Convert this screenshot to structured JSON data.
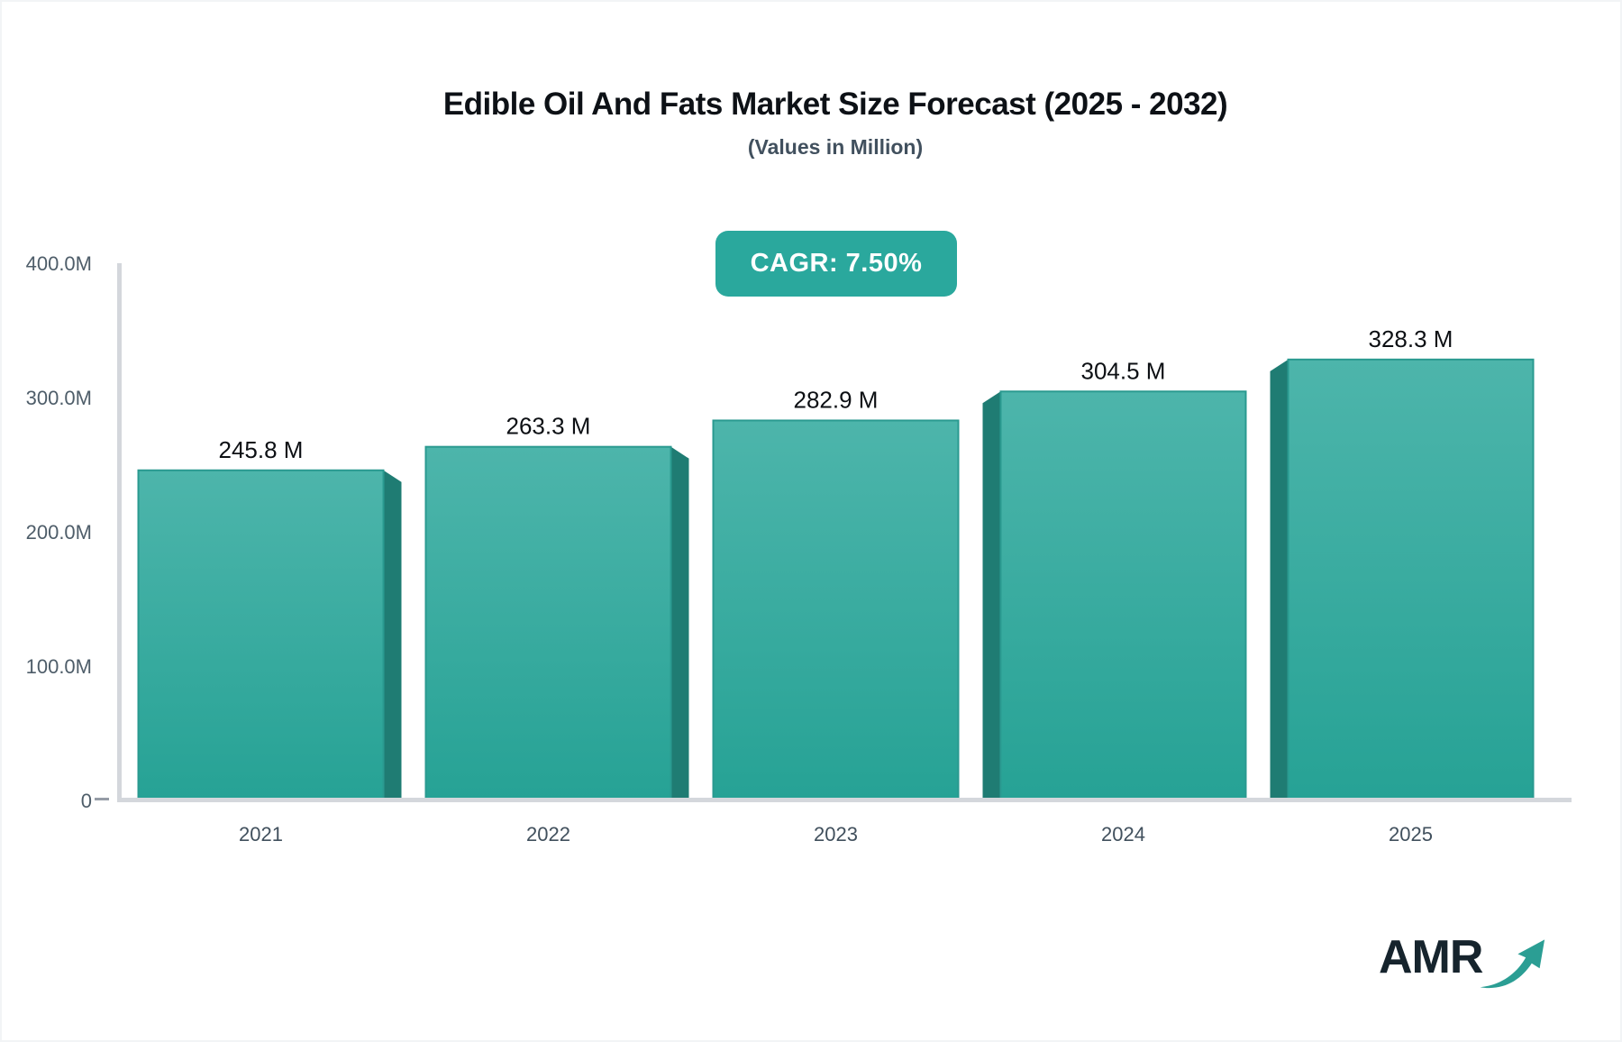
{
  "header": {
    "title": "Edible Oil And Fats Market Size Forecast (2025 - 2032)",
    "subtitle": "(Values in Million)"
  },
  "badge": {
    "label": "CAGR: 7.50%",
    "background": "#2aa89d",
    "text_color": "#ffffff"
  },
  "logo": {
    "text": "AMR",
    "arrow_icon": "trend-up-arrow",
    "arrow_color": "#2b9e94",
    "text_color": "#16242d"
  },
  "chart_data": {
    "type": "bar",
    "title": "Edible Oil And Fats Market Size Forecast (2025 - 2032)",
    "subtitle": "(Values in Million)",
    "categories": [
      "2021",
      "2022",
      "2023",
      "2024",
      "2025"
    ],
    "values": [
      245.8,
      263.3,
      282.9,
      304.5,
      328.3
    ],
    "value_labels": [
      "245.8 M",
      "263.3 M",
      "282.9 M",
      "304.5 M",
      "328.3 M"
    ],
    "unit": "Million",
    "cagr": "7.50%",
    "xlabel": "",
    "ylabel": "",
    "ylim": [
      0,
      400
    ],
    "yticks": [
      {
        "value": 400,
        "label": "400.0M"
      },
      {
        "value": 300,
        "label": "300.0M"
      },
      {
        "value": 200,
        "label": "200.0M"
      },
      {
        "value": 100,
        "label": "100.0M"
      },
      {
        "value": 0,
        "label": "0"
      }
    ],
    "grid": false,
    "legend": null,
    "bar_style": "3d-extruded",
    "colors": {
      "bar_gradient_top": "#4db5ab",
      "bar_gradient_bottom": "#26a295",
      "bar_side": "#1f7c73",
      "bar_edge": "#2a9a90",
      "axis": "#d4d7dc",
      "tick_text": "#4e5d69",
      "category_text": "#41505d",
      "value_text": "#0d1014"
    }
  }
}
